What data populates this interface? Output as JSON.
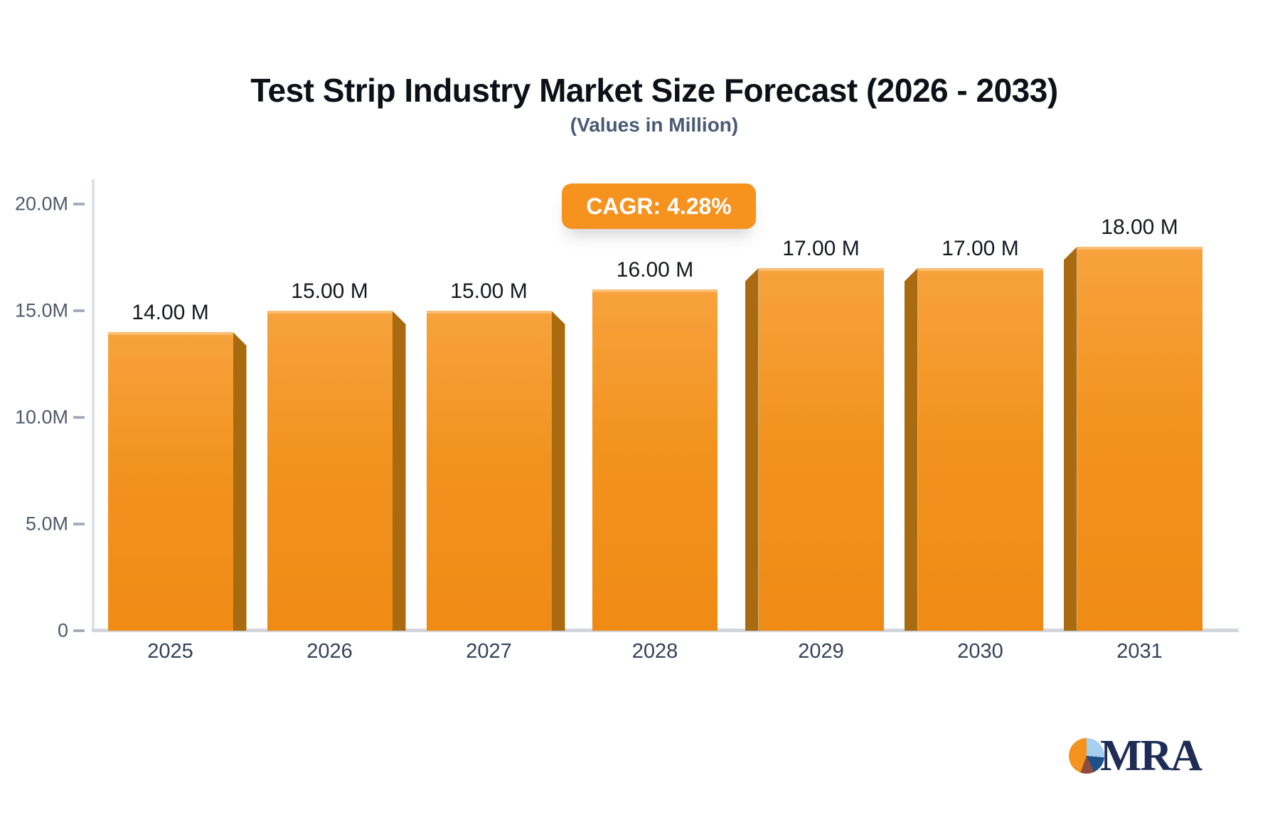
{
  "title": "Test Strip Industry Market Size Forecast (2026 - 2033)",
  "subtitle": "(Values in Million)",
  "badge": {
    "label": "CAGR: 4.28%"
  },
  "logo": {
    "text": "MRA",
    "pie_icon": "pie-chart-icon"
  },
  "colors": {
    "bar_top": "#f7a23d",
    "bar_bottom": "#ef8b15",
    "bar_side": "#a96a10",
    "badge_bg": "#f6921e",
    "title": "#0d1117",
    "subtitle": "#4a5a75",
    "axis_label": "#4e5a6c",
    "year_label": "#36425a",
    "value_label": "#15181d",
    "logo_navy": "#1f2c55"
  },
  "chart_data": {
    "type": "bar",
    "title": "Test Strip Industry Market Size Forecast (2026 - 2033)",
    "subtitle": "(Values in Million)",
    "cagr": "4.28%",
    "unit": "Million",
    "categories": [
      "2025",
      "2026",
      "2027",
      "2028",
      "2029",
      "2030",
      "2031"
    ],
    "values_millions": [
      14,
      15,
      15,
      16,
      17,
      17,
      18
    ],
    "value_labels": [
      "14.00 M",
      "15.00 M",
      "15.00 M",
      "16.00 M",
      "17.00 M",
      "17.00 M",
      "18.00 M"
    ],
    "y_ticks": [
      {
        "label": "20.0M",
        "value": 20
      },
      {
        "label": "15.0M",
        "value": 15
      },
      {
        "label": "10.0M",
        "value": 10
      },
      {
        "label": "5.0M",
        "value": 5
      },
      {
        "label": "0",
        "value": 0
      }
    ],
    "ylim": [
      0,
      20
    ],
    "grid": false,
    "legend": false
  }
}
